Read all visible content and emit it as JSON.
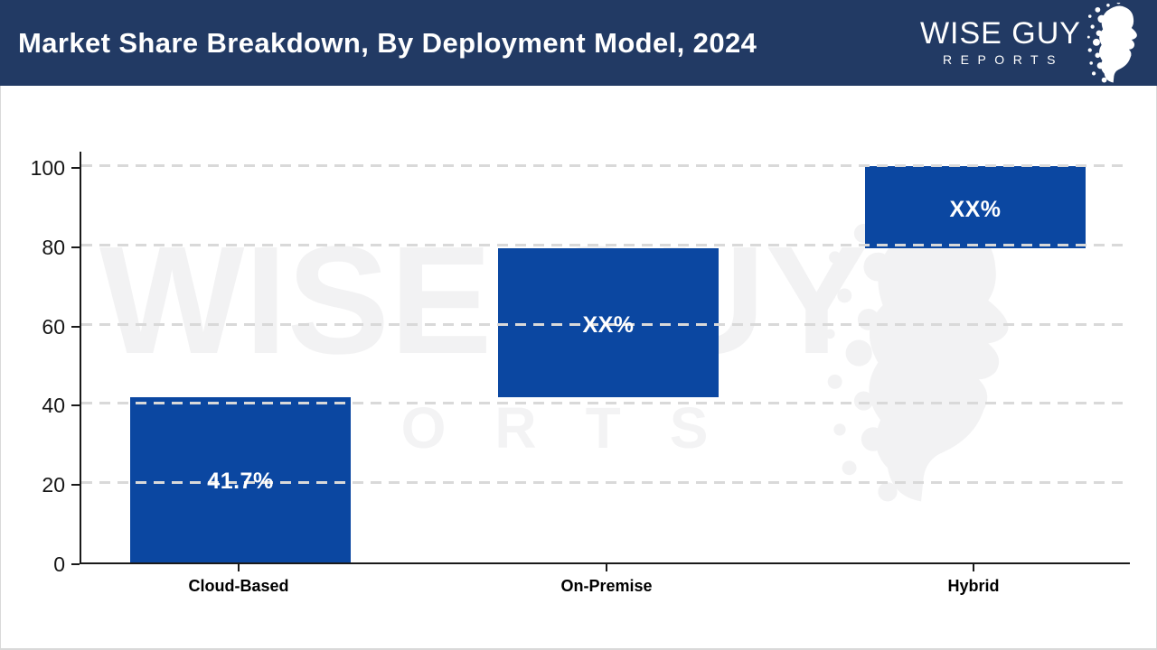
{
  "header": {
    "title": "Market Share Breakdown, By Deployment Model, 2024",
    "brand": {
      "line1": "WISE GUY",
      "line2": "REPORTS"
    }
  },
  "watermark": {
    "line1": "WISE GUY",
    "line2": "REPORTS"
  },
  "chart_data": {
    "type": "bar",
    "subtype": "floating segmented percentage bars (waterfall style)",
    "title": "Market Share Breakdown, By Deployment Model, 2024",
    "categories": [
      "Cloud-Based",
      "On-Premise",
      "Hybrid"
    ],
    "bars": [
      {
        "category": "Cloud-Based",
        "label": "41.7%",
        "start": 0,
        "end": 41.7
      },
      {
        "category": "On-Premise",
        "label": "XX%",
        "start": 41.7,
        "end": 79.2
      },
      {
        "category": "Hybrid",
        "label": "XX%",
        "start": 79.2,
        "end": 100
      }
    ],
    "ylim": [
      0,
      100
    ],
    "yticks": [
      0,
      20,
      40,
      60,
      80,
      100
    ],
    "grid": {
      "axis": "y",
      "style": "dashed",
      "color": "#d9d9d9"
    },
    "legend": "none",
    "bar_color": "#0b47a1",
    "value_label_color": "#ffffff"
  },
  "colors": {
    "header_bg": "#223a64",
    "bar": "#0b47a1",
    "grid": "#d9d9d9",
    "axis": "#1a1a1a",
    "watermark": "#f2f2f3",
    "page_bg": "#ffffff"
  }
}
